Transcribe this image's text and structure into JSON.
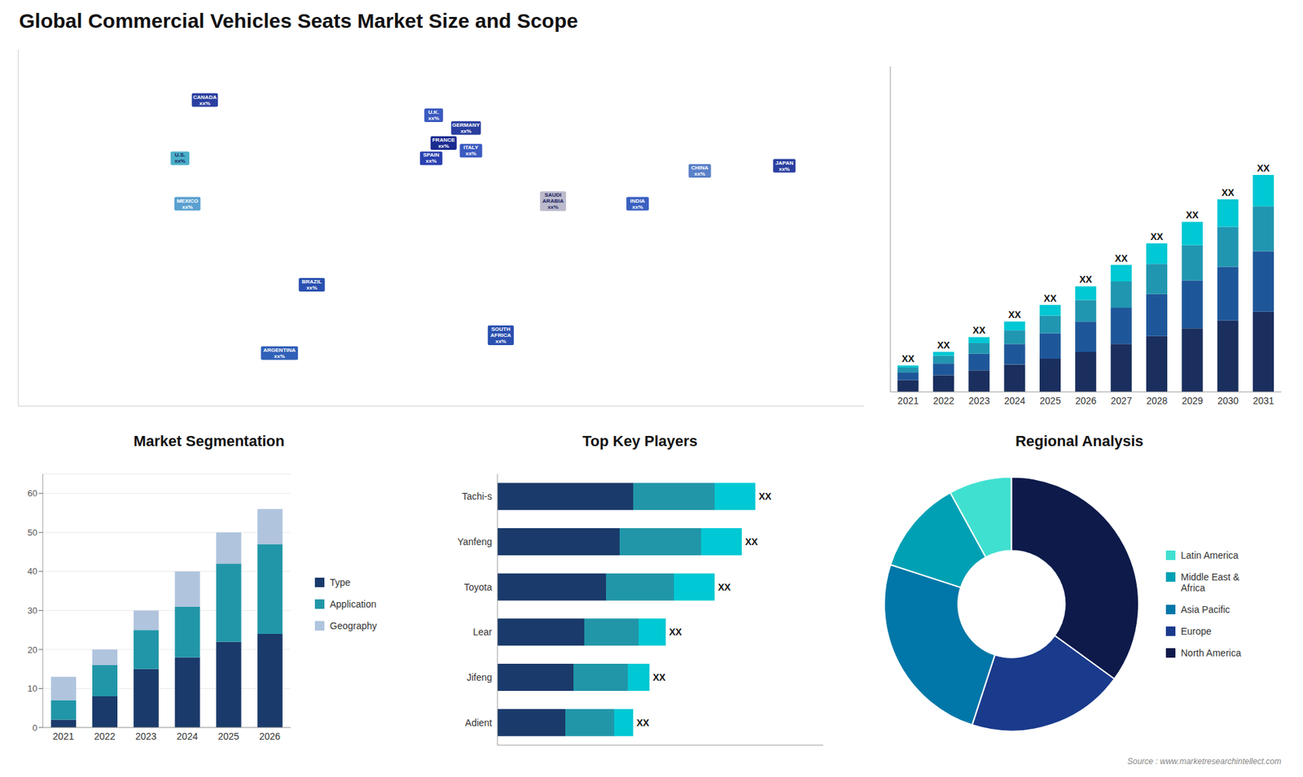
{
  "chart_data": [
    {
      "type": "bar",
      "title": "Global Commercial Vehicles Seats Market Size and Scope",
      "stacked": true,
      "categories": [
        "2021",
        "2022",
        "2023",
        "2024",
        "2025",
        "2026",
        "2027",
        "2028",
        "2029",
        "2030",
        "2031"
      ],
      "series": [
        {
          "color": "#1a2f5e",
          "values": [
            1.2,
            1.7,
            2.2,
            2.8,
            3.4,
            4.1,
            4.9,
            5.7,
            6.5,
            7.3,
            8.2
          ]
        },
        {
          "color": "#1e5799",
          "values": [
            0.8,
            1.2,
            1.7,
            2.1,
            2.6,
            3.1,
            3.7,
            4.3,
            4.9,
            5.5,
            6.2
          ]
        },
        {
          "color": "#2196b0",
          "values": [
            0.5,
            0.8,
            1.1,
            1.4,
            1.8,
            2.2,
            2.7,
            3.1,
            3.6,
            4.1,
            4.6
          ]
        },
        {
          "color": "#00c8d4",
          "values": [
            0.2,
            0.4,
            0.6,
            0.9,
            1.1,
            1.4,
            1.7,
            2.1,
            2.4,
            2.8,
            3.2
          ]
        }
      ],
      "ylim": [
        0,
        33.3
      ],
      "tick_labels": "x",
      "grid": false,
      "annotations": [
        {
          "category": "2021",
          "text": "XX"
        },
        {
          "category": "2022",
          "text": "XX"
        },
        {
          "category": "2023",
          "text": "XX"
        },
        {
          "category": "2024",
          "text": "XX"
        },
        {
          "category": "2025",
          "text": "XX"
        },
        {
          "category": "2026",
          "text": "XX"
        },
        {
          "category": "2027",
          "text": "XX"
        },
        {
          "category": "2028",
          "text": "XX"
        },
        {
          "category": "2029",
          "text": "XX"
        },
        {
          "category": "2030",
          "text": "XX"
        },
        {
          "category": "2031",
          "text": "XX"
        },
        {
          "text": "Source : www.marketresearchintellect.com"
        }
      ]
    },
    {
      "type": "map",
      "xlim": [
        -170,
        170
      ],
      "ylim": [
        -58,
        83
      ],
      "tick_labels": false,
      "points": [
        {
          "label": "CANADA\nxx%",
          "x": -95,
          "y": 63,
          "color": "#2a3fa0"
        },
        {
          "label": "U.S.\nxx%",
          "x": -105,
          "y": 40,
          "color": "#4ab0c8"
        },
        {
          "label": "MEXICO\nxx%",
          "x": -102,
          "y": 22,
          "color": "#5aa0d0"
        },
        {
          "label": "BRAZIL\nxx%",
          "x": -52,
          "y": -10,
          "color": "#2a50b0"
        },
        {
          "label": "ARGENTINA\nxx%",
          "x": -65,
          "y": -37,
          "color": "#3060b8"
        },
        {
          "label": "U.K.\nxx%",
          "x": -3,
          "y": 57,
          "color": "#3a5ac0"
        },
        {
          "label": "FRANCE\nxx%",
          "x": 1,
          "y": 46,
          "color": "#1a2a90"
        },
        {
          "label": "SPAIN\nxx%",
          "x": -4,
          "y": 40,
          "color": "#2a40b0"
        },
        {
          "label": "GERMANY\nxx%",
          "x": 10,
          "y": 52,
          "color": "#2a3fa0"
        },
        {
          "label": "ITALY\nxx%",
          "x": 12,
          "y": 43,
          "color": "#3a5ac0"
        },
        {
          "label": "SOUTH\nAFRICA\nxx%",
          "x": 24,
          "y": -30,
          "color": "#2a50b0"
        },
        {
          "label": "SAUDI\nARABIA\nxx%",
          "x": 45,
          "y": 23,
          "color": "#bbbbcc"
        },
        {
          "label": "CHINA\nxx%",
          "x": 104,
          "y": 35,
          "color": "#5a80c8"
        },
        {
          "label": "INDIA\nxx%",
          "x": 79,
          "y": 22,
          "color": "#3a60c0"
        },
        {
          "label": "JAPAN\nxx%",
          "x": 138,
          "y": 37,
          "color": "#2a3fa0"
        }
      ]
    },
    {
      "type": "bar",
      "title": "Market Segmentation",
      "stacked": true,
      "categories": [
        "2021",
        "2022",
        "2023",
        "2024",
        "2025",
        "2026"
      ],
      "series": [
        {
          "name": "Type",
          "color": "#1a3a6b",
          "values": [
            2,
            8,
            15,
            18,
            22,
            24
          ]
        },
        {
          "name": "Application",
          "color": "#2196a8",
          "values": [
            5,
            8,
            10,
            13,
            20,
            23
          ]
        },
        {
          "name": "Geography",
          "color": "#b0c4de",
          "values": [
            6,
            4,
            5,
            9,
            8,
            9
          ]
        }
      ],
      "ylim": [
        0,
        65
      ],
      "yticks": [
        0,
        10,
        20,
        30,
        40,
        50,
        60
      ],
      "grid": true,
      "legend": "right"
    },
    {
      "type": "bar",
      "title": "Top Key Players",
      "orientation": "horizontal",
      "stacked": true,
      "categories": [
        "Tachi-s",
        "Yanfeng",
        "Toyota",
        "Lear",
        "Jifeng",
        "Adient"
      ],
      "series": [
        {
          "color": "#1a3a6b",
          "values": [
            5.0,
            4.5,
            4.0,
            3.2,
            2.8,
            2.5
          ]
        },
        {
          "color": "#2196a8",
          "values": [
            3.0,
            3.0,
            2.5,
            2.0,
            2.0,
            1.8
          ]
        },
        {
          "color": "#00c8d4",
          "values": [
            1.5,
            1.5,
            1.5,
            1.0,
            0.8,
            0.7
          ]
        }
      ],
      "xlim": [
        0,
        12
      ],
      "tick_labels": "y",
      "grid": false,
      "annotations": [
        {
          "category": "Tachi-s",
          "text": "XX"
        },
        {
          "category": "Yanfeng",
          "text": "XX"
        },
        {
          "category": "Toyota",
          "text": "XX"
        },
        {
          "category": "Lear",
          "text": "XX"
        },
        {
          "category": "Jifeng",
          "text": "XX"
        },
        {
          "category": "Adient",
          "text": "XX"
        }
      ]
    },
    {
      "type": "pie",
      "title": "Regional Analysis",
      "categories": [
        "Latin America",
        "Middle East &\nAfrica",
        "Asia Pacific",
        "Europe",
        "North America"
      ],
      "values": [
        8,
        12,
        25,
        20,
        35
      ],
      "colors": [
        "#40e0d0",
        "#00a0b4",
        "#0077a8",
        "#1a3a8c",
        "#0d1a4a"
      ],
      "legend": "right"
    }
  ]
}
